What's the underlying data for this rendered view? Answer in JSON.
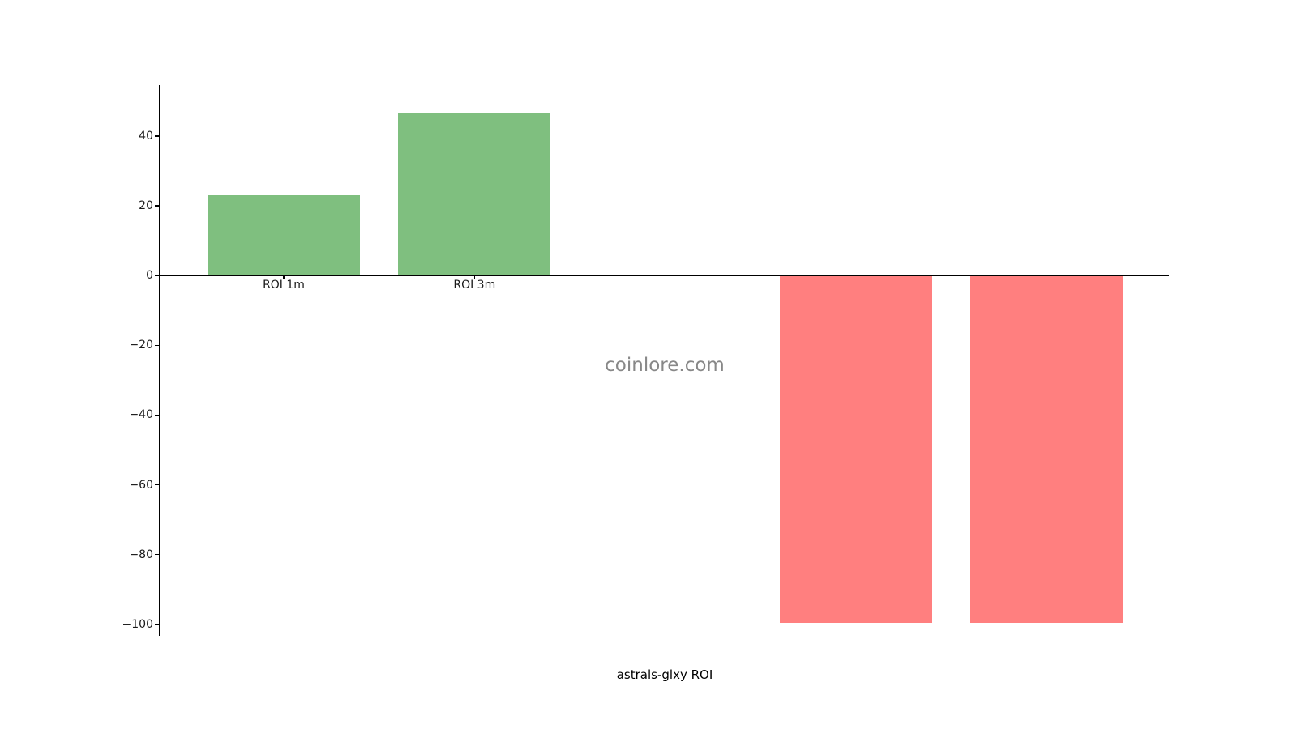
{
  "chart_data": {
    "type": "bar",
    "title": "astrals-glxy ROI",
    "watermark": "coinlore.com",
    "categories": [
      "ROI 1m",
      "ROI 3m",
      "",
      "",
      ""
    ],
    "values": [
      23,
      46.5,
      null,
      -99.7,
      -99.7
    ],
    "series": [
      {
        "name": "ROI",
        "values": [
          23,
          46.5,
          null,
          -99.7,
          -99.7
        ]
      }
    ],
    "positive_color": "#7FBF7F",
    "negative_color": "#FF7F7F",
    "axis_color": "#000000",
    "watermark_color": "#888888",
    "ylim": [
      -103.3,
      54.6
    ],
    "yticks": [
      40,
      20,
      0,
      -20,
      -40,
      -60,
      -80,
      -100
    ],
    "ytick_labels": [
      "40",
      "20",
      "0",
      "−20",
      "−40",
      "−60",
      "−80",
      "−100"
    ],
    "grid": false,
    "legend": "none",
    "xlabel": "",
    "ylabel": ""
  }
}
